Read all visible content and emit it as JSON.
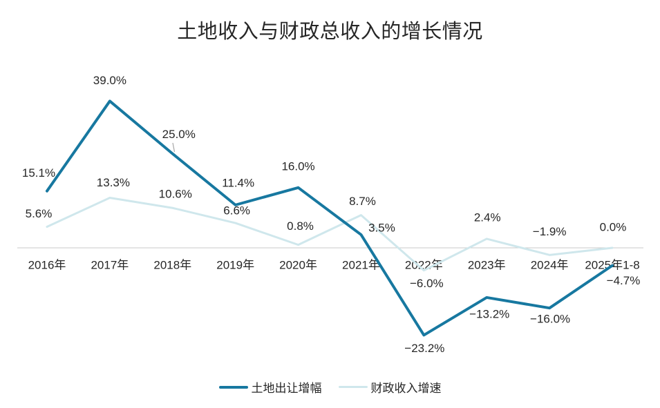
{
  "chart_data": {
    "type": "line",
    "title": "土地收入与财政总收入的增长情况",
    "xlabel": "",
    "ylabel": "",
    "categories": [
      "2016年",
      "2017年",
      "2018年",
      "2019年",
      "2020年",
      "2021年",
      "2022年",
      "2023年",
      "2024年",
      "2025年1-8"
    ],
    "series": [
      {
        "name": "土地出让增幅",
        "color": "#1778a0",
        "line_width": 4,
        "values": [
          15.1,
          39.0,
          25.0,
          11.4,
          16.0,
          3.5,
          -23.2,
          -13.2,
          -16.0,
          -4.7
        ],
        "labels": [
          "15.1%",
          "39.0%",
          "25.0%",
          "11.4%",
          "16.0%",
          "3.5%",
          "−23.2%",
          "−13.2%",
          "−16.0%",
          "−4.7%"
        ]
      },
      {
        "name": "财政收入增速",
        "color": "#cfe7ec",
        "line_width": 3,
        "values": [
          5.6,
          13.3,
          10.6,
          6.6,
          0.8,
          8.7,
          -6.0,
          2.4,
          -1.9,
          0.0
        ],
        "labels": [
          "5.6%",
          "13.3%",
          "10.6%",
          "6.6%",
          "0.8%",
          "8.7%",
          "−6.0%",
          "2.4%",
          "−1.9%",
          "0.0%"
        ]
      }
    ],
    "ylim": [
      -30,
      45
    ],
    "grid": false,
    "y_axis_visible": false,
    "zero_line_color": "#c8c8c8",
    "label_color": "#262626",
    "legend_position": "bottom"
  }
}
